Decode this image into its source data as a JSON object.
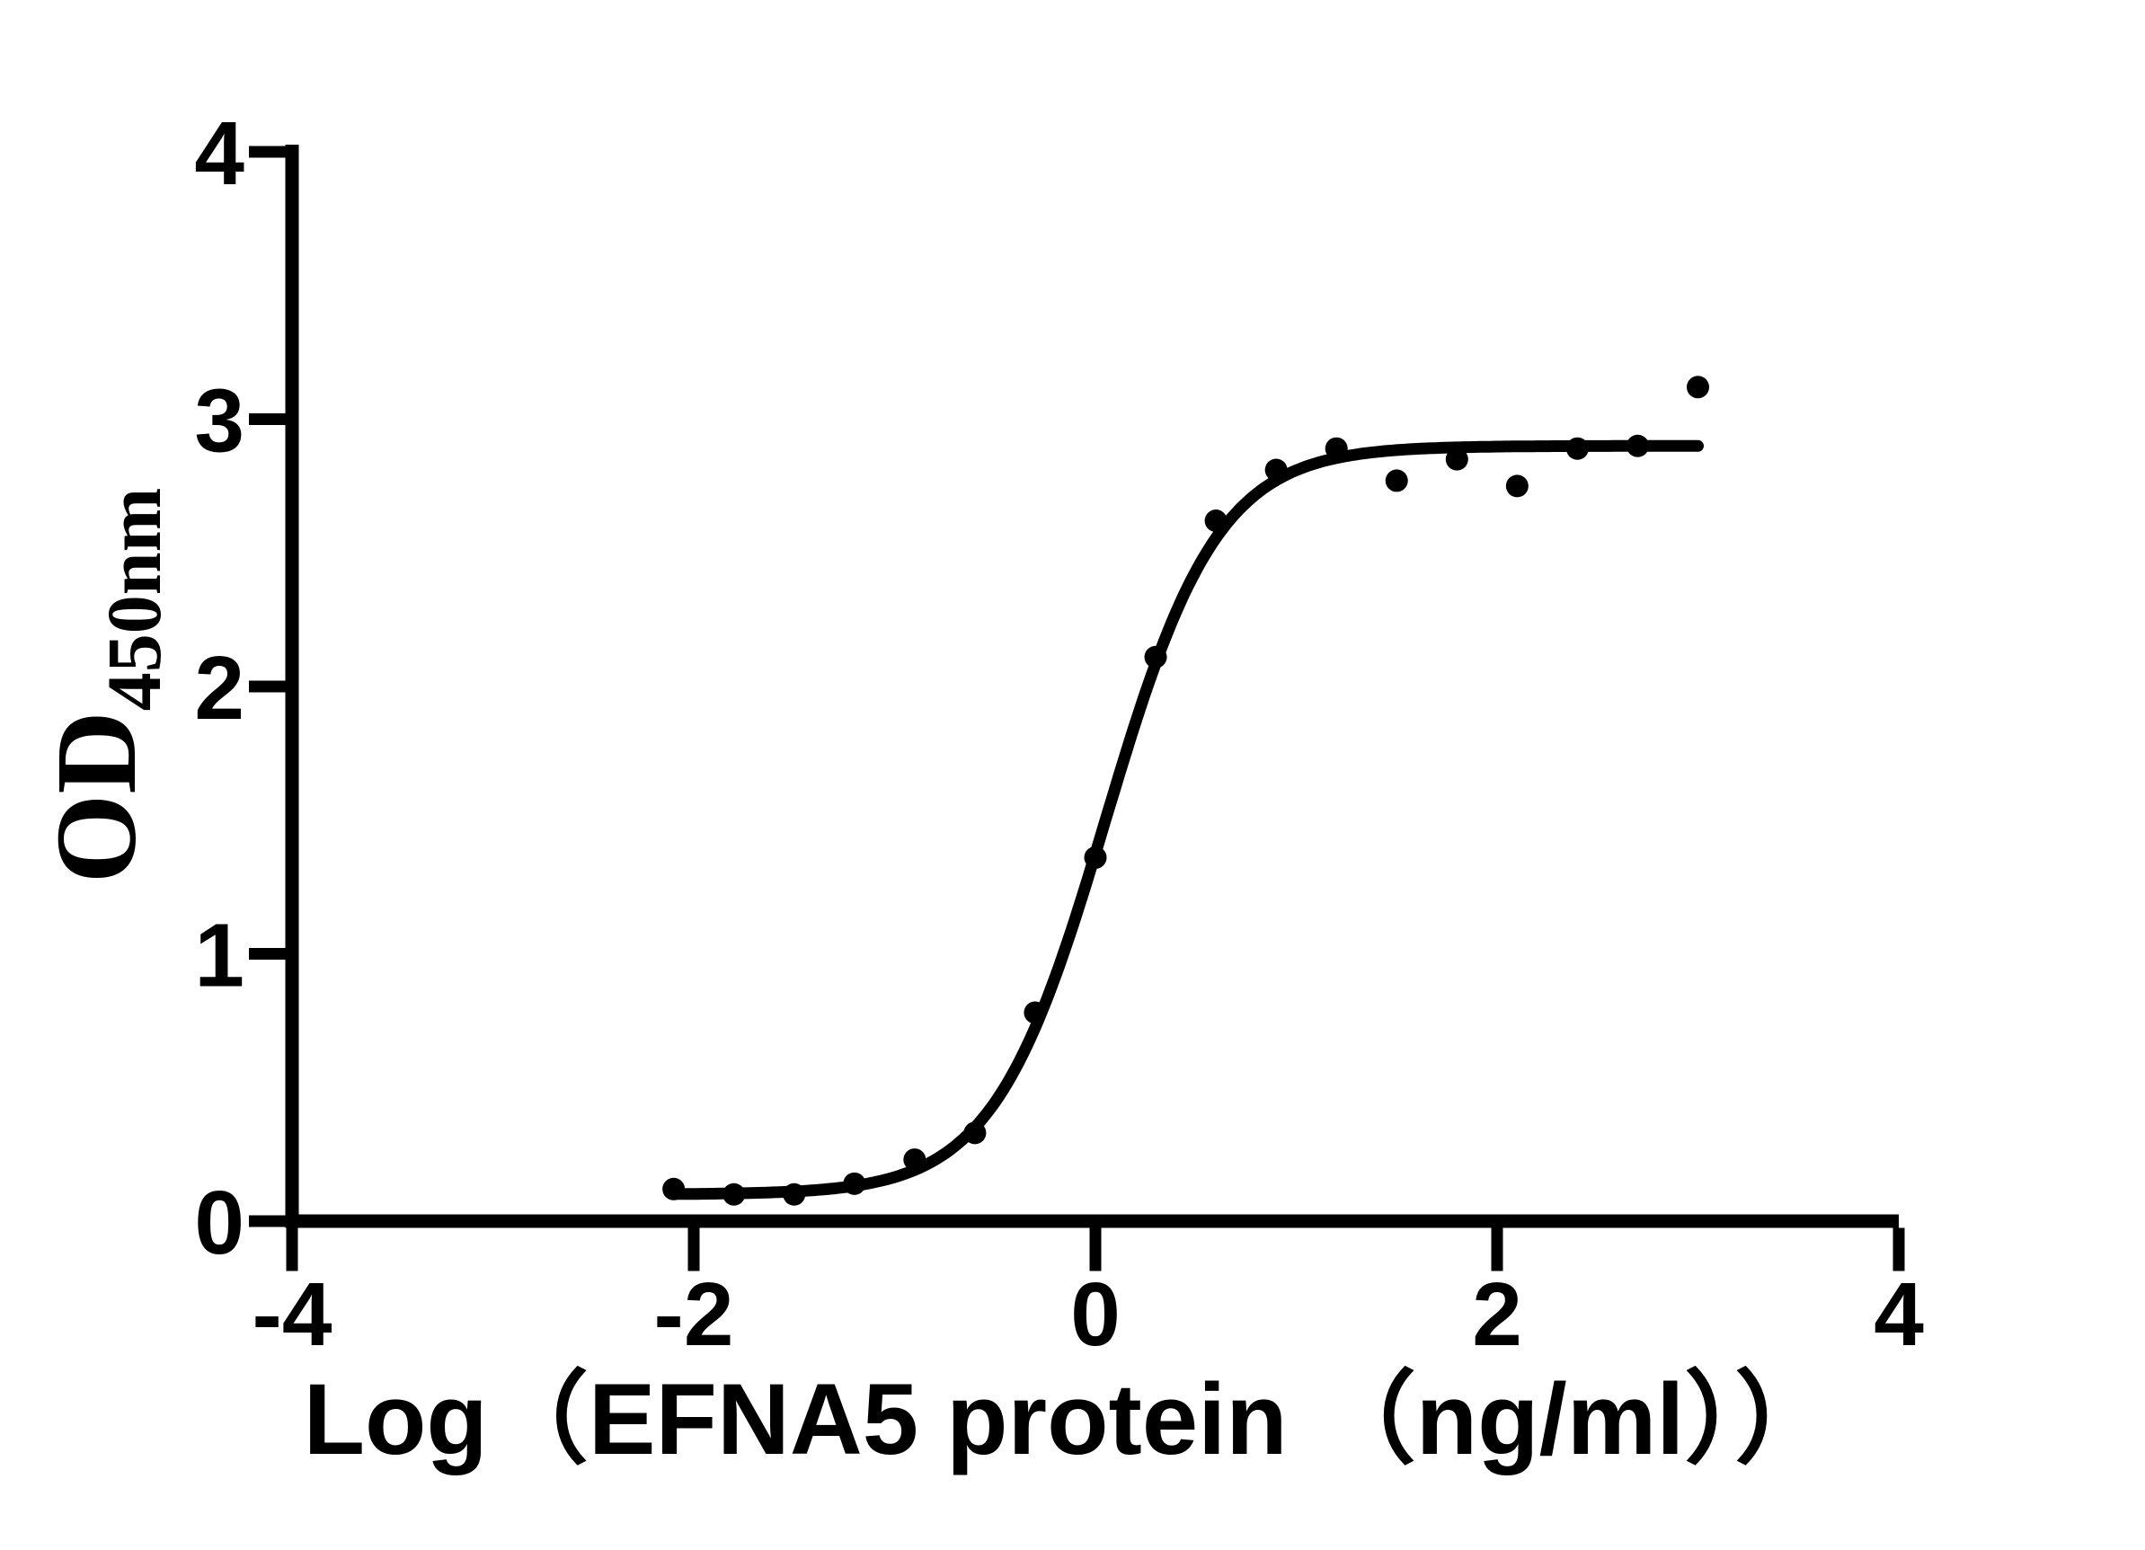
{
  "figure": {
    "background_color": "#ffffff",
    "foreground_color": "#000000"
  },
  "chart_data": {
    "type": "scatter",
    "title": "",
    "xlabel": "Log（EFNA5 protein （ng/ml））",
    "ylabel_main": "OD",
    "ylabel_subscript": "450nm",
    "xlim": [
      -4,
      4
    ],
    "ylim": [
      0,
      4
    ],
    "x_ticks": [
      "-4",
      "-2",
      "0",
      "2",
      "4"
    ],
    "x_tick_values": [
      -4,
      -2,
      0,
      2,
      4
    ],
    "y_ticks": [
      "0",
      "1",
      "2",
      "3",
      "4"
    ],
    "y_tick_values": [
      0,
      1,
      2,
      3,
      4
    ],
    "grid": false,
    "legend": "none",
    "point_color": "#000000",
    "curve_color": "#000000",
    "points": [
      {
        "x": -2.1,
        "y": 0.12
      },
      {
        "x": -1.8,
        "y": 0.1
      },
      {
        "x": -1.5,
        "y": 0.1
      },
      {
        "x": -1.2,
        "y": 0.14
      },
      {
        "x": -0.9,
        "y": 0.23
      },
      {
        "x": -0.6,
        "y": 0.33
      },
      {
        "x": -0.3,
        "y": 0.78
      },
      {
        "x": 0.0,
        "y": 1.36
      },
      {
        "x": 0.3,
        "y": 2.11
      },
      {
        "x": 0.6,
        "y": 2.62
      },
      {
        "x": 0.9,
        "y": 2.81
      },
      {
        "x": 1.2,
        "y": 2.89
      },
      {
        "x": 1.5,
        "y": 2.77
      },
      {
        "x": 1.8,
        "y": 2.85
      },
      {
        "x": 2.1,
        "y": 2.75
      },
      {
        "x": 2.4,
        "y": 2.89
      },
      {
        "x": 2.7,
        "y": 2.9
      },
      {
        "x": 3.0,
        "y": 3.12
      }
    ],
    "fit_curve": {
      "model": "four-parameter-logistic",
      "bottom": 0.1,
      "top": 2.9,
      "log_ec50": 0.05,
      "hill_slope": 1.55,
      "x_start": -2.1,
      "x_end": 3.01
    }
  }
}
